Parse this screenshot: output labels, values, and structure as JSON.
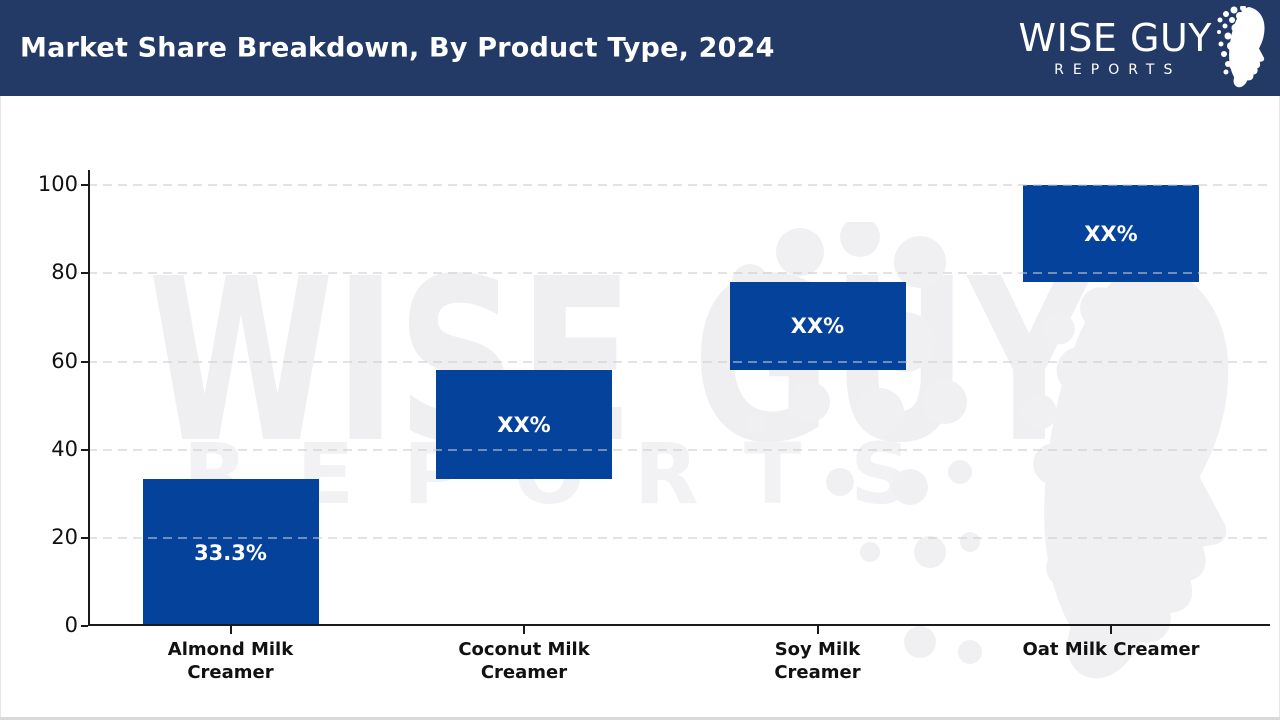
{
  "header": {
    "title": "Market Share Breakdown, By Product Type, 2024",
    "logo": {
      "wordmark": "WISE GUY",
      "subtitle": "REPORTS"
    }
  },
  "watermark": {
    "wordmark": "WISE GUY",
    "subtitle": "REPORTS"
  },
  "chart_data": {
    "type": "bar",
    "subtype": "waterfall",
    "title": "Market Share Breakdown, By Product Type, 2024",
    "categories": [
      "Almond Milk Creamer",
      "Coconut Milk Creamer",
      "Soy Milk Creamer",
      "Oat Milk Creamer"
    ],
    "series": [
      {
        "name": "Market share (%)",
        "segments": [
          {
            "category": "Almond Milk Creamer",
            "start": 0,
            "end": 33.3,
            "label": "33.3%"
          },
          {
            "category": "Coconut Milk Creamer",
            "start": 33.3,
            "end": 58,
            "label": "XX%"
          },
          {
            "category": "Soy Milk Creamer",
            "start": 58,
            "end": 78,
            "label": "XX%"
          },
          {
            "category": "Oat Milk Creamer",
            "start": 78,
            "end": 100,
            "label": "XX%"
          }
        ]
      }
    ],
    "ylim": [
      0,
      100
    ],
    "yticks": [
      0,
      20,
      40,
      60,
      80,
      100
    ],
    "xlabel": "",
    "ylabel": "",
    "grid": "horizontal-dashed",
    "legend": "none",
    "colors": {
      "bar": "#05429B",
      "bar_label": "#FFFFFF",
      "axis": "#1A1A1A",
      "tick_label": "#111111",
      "grid": "#CCCCCC",
      "header_bg": "#233A66",
      "header_text": "#FFFFFF",
      "watermark": "#F0F0F2"
    }
  }
}
